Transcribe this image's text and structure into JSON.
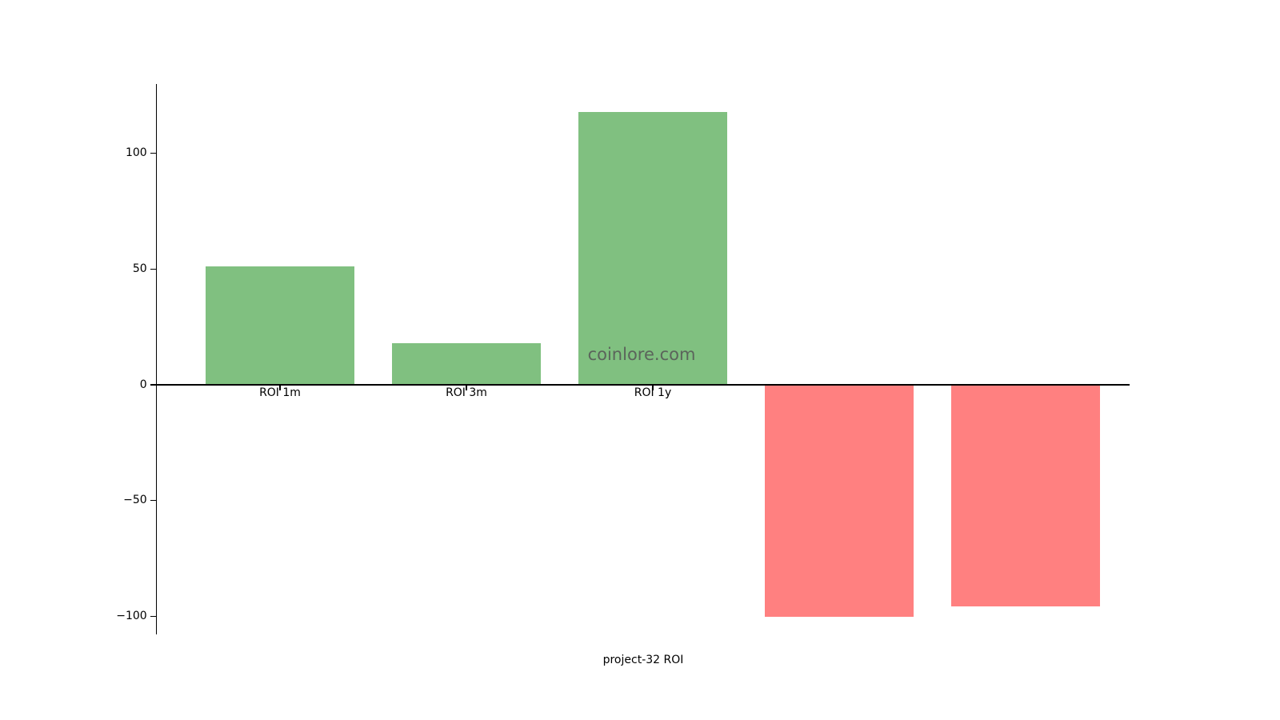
{
  "chart_data": {
    "type": "bar",
    "title": "project-32 ROI",
    "watermark": "coinlore.com",
    "categories": [
      "ROI 1m",
      "ROI 3m",
      "ROI 1y",
      "",
      ""
    ],
    "values": [
      51,
      18,
      118,
      -100,
      -95.5
    ],
    "bar_colors": [
      "#80c080",
      "#80c080",
      "#80c080",
      "#ff8080",
      "#ff8080"
    ],
    "positive_color": "#80c080",
    "negative_color": "#ff8080",
    "xlabel": "project-32 ROI",
    "ylabel": "",
    "yticks": [
      100,
      50,
      0,
      -50,
      -100
    ],
    "ylim": [
      -108,
      130
    ],
    "grid": false,
    "legend": null,
    "axis_color": "#000000",
    "watermark_color": "#555555"
  }
}
